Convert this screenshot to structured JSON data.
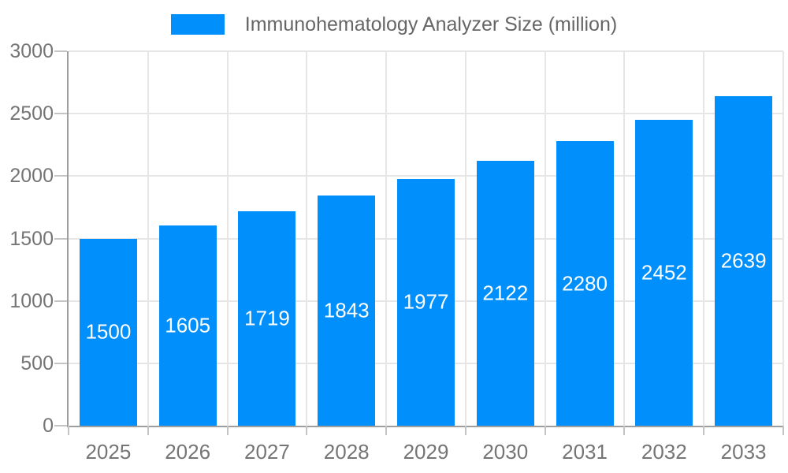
{
  "legend": {
    "label": "Immunohematology Analyzer Size (million)",
    "swatch_color": "#008FFB"
  },
  "chart_data": {
    "type": "bar",
    "title": "Immunohematology Analyzer Size (million)",
    "categories": [
      "2025",
      "2026",
      "2027",
      "2028",
      "2029",
      "2030",
      "2031",
      "2032",
      "2033"
    ],
    "series": [
      {
        "name": "Immunohematology Analyzer Size (million)",
        "color": "#008FFB",
        "values": [
          1500,
          1605,
          1719,
          1843,
          1977,
          2122,
          2280,
          2452,
          2639
        ]
      }
    ],
    "xlabel": "",
    "ylabel": "",
    "ylim": [
      0,
      3000
    ],
    "yticks": [
      0,
      500,
      1000,
      1500,
      2000,
      2500,
      3000
    ],
    "grid": true,
    "legend_position": "top",
    "value_label_position": "inside-center"
  },
  "colors": {
    "bar": "#008FFB",
    "axis_label": "#757575",
    "legend_text": "#666666",
    "gridline": "#e6e6e6",
    "axis_line": "#9e9e9e",
    "tick": "#c4c4c4",
    "value_label": "#ffffff",
    "background": "#ffffff"
  }
}
